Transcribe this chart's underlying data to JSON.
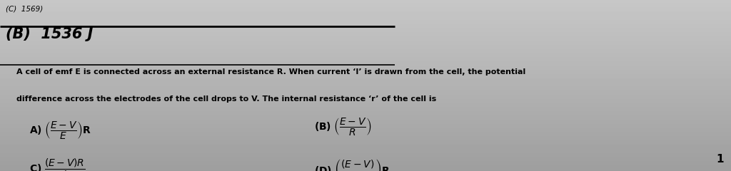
{
  "background_color_top": "#b0aeae",
  "background_color_bottom": "#c8c6c6",
  "top_left_text": "(C)  1569)",
  "bold_answer": "(B)  1536 J",
  "body_line1": "A cell of emf E is connected across an external resistance R. When current ‘I’ is drawn from the cell, the potential",
  "body_line2": "difference across the electrodes of the cell drops to V. The internal resistance ‘r’ of the cell is",
  "page_num": "1",
  "fig_width": 10.24,
  "fig_height": 2.4,
  "dpi": 100
}
